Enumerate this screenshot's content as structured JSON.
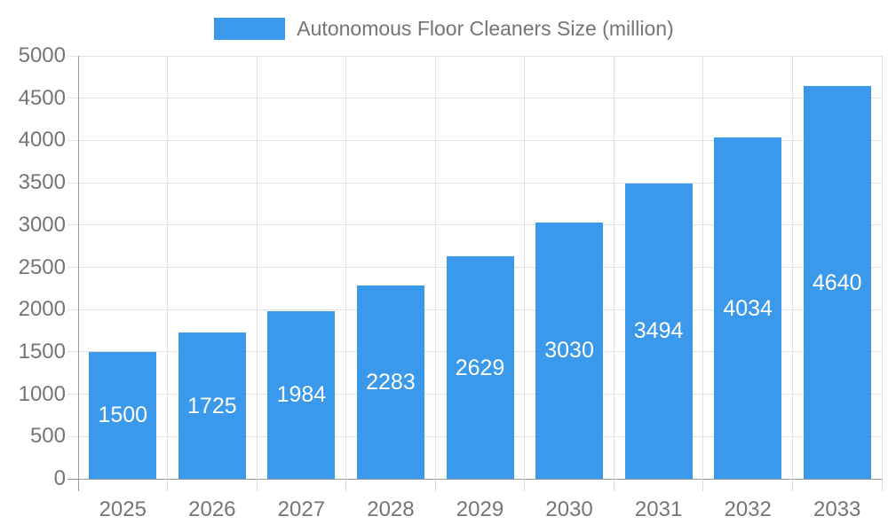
{
  "colors": {
    "bar": "#3B99EC",
    "grid": "#E1E1E1",
    "axis": "#9A9A9A",
    "tick": "#D8D8D8",
    "text": "#757575",
    "bar_label": "#FFFFFF",
    "background": "#FFFFFF"
  },
  "legend": {
    "label": "Autonomous Floor Cleaners Size (million)"
  },
  "chart_data": {
    "type": "bar",
    "title": "Autonomous Floor Cleaners Size (million)",
    "categories": [
      "2025",
      "2026",
      "2027",
      "2028",
      "2029",
      "2030",
      "2031",
      "2032",
      "2033"
    ],
    "values": [
      1500,
      1725,
      1984,
      2283,
      2629,
      3030,
      3494,
      4034,
      4640
    ],
    "series_name": "Autonomous Floor Cleaners Size (million)",
    "xlabel": "",
    "ylabel": "",
    "ylim": [
      0,
      5000
    ],
    "ytick_step": 500,
    "yticks": [
      0,
      500,
      1000,
      1500,
      2000,
      2500,
      3000,
      3500,
      4000,
      4500,
      5000
    ],
    "grid": true,
    "legend_position": "top",
    "value_labels": "inside-center"
  }
}
